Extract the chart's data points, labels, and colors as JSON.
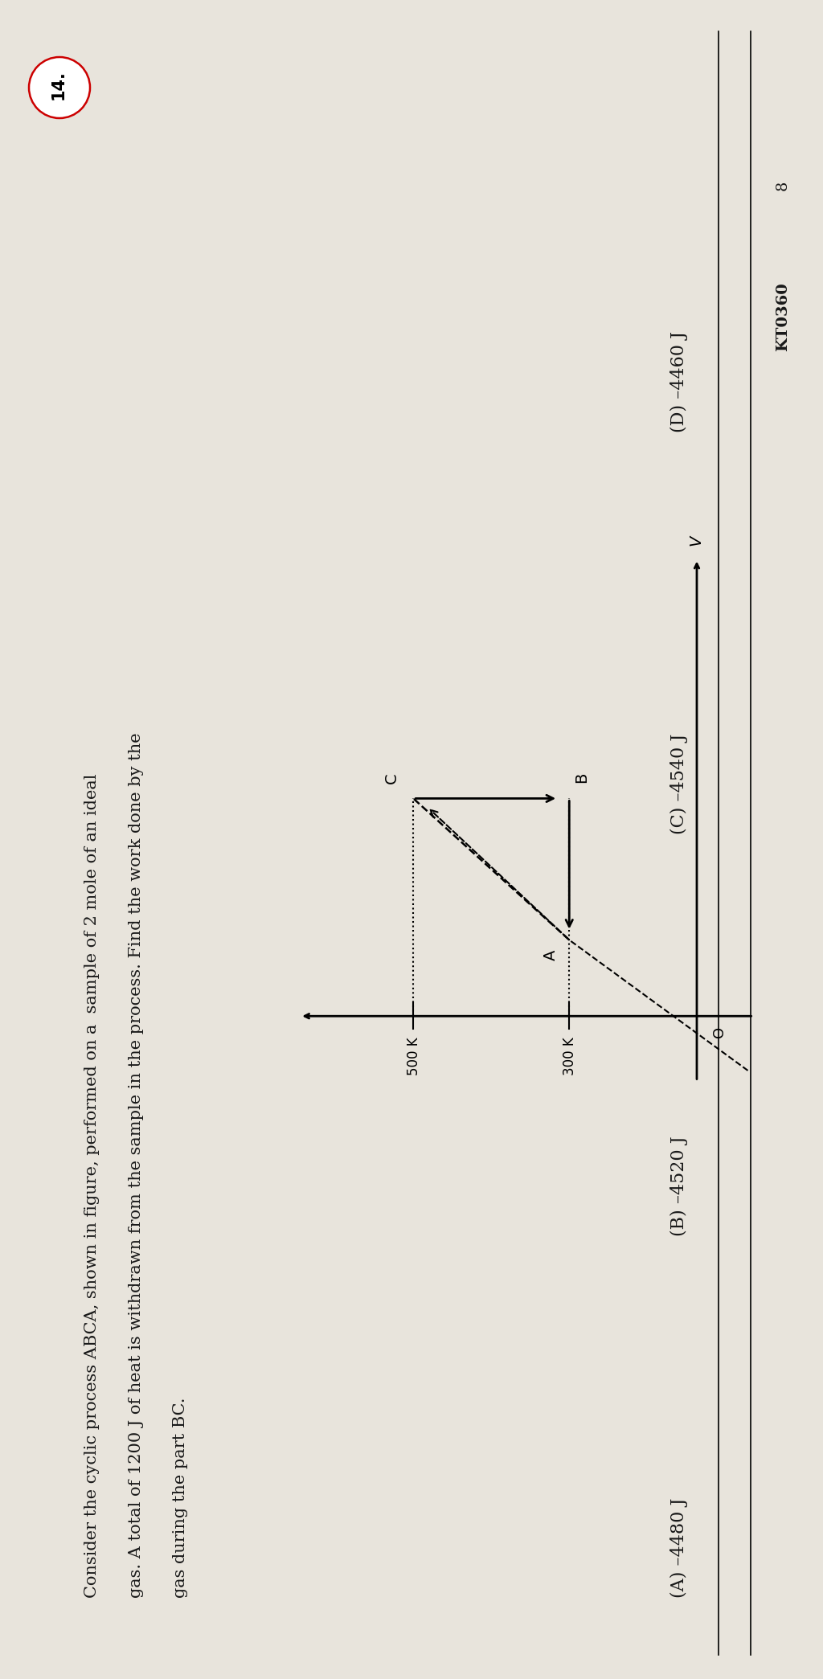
{
  "question_number": "14.",
  "question_text_line1": "Consider the cyclic process ABCA, shown in figure, performed on a  sample of 2 mole of an ideal",
  "question_text_line2": "gas. A total of 1200 J of heat is withdrawn from the sample in the process. Find the work done by the",
  "question_text_line3": "gas during the part BC.",
  "options": [
    "(A) –4480 J",
    "(B) –4520 J",
    "(C) –4540 J",
    "(D) –4460 J"
  ],
  "code": "KT0360",
  "page": "8",
  "bg_color": "#e8e4dc",
  "text_color": "#1a1a1a",
  "diagram": {
    "C": [
      1.0,
      1.0
    ],
    "B": [
      1.0,
      0.45
    ],
    "A": [
      0.35,
      0.45
    ],
    "T_C_label": "500 K",
    "T_A_label": "300 K"
  }
}
